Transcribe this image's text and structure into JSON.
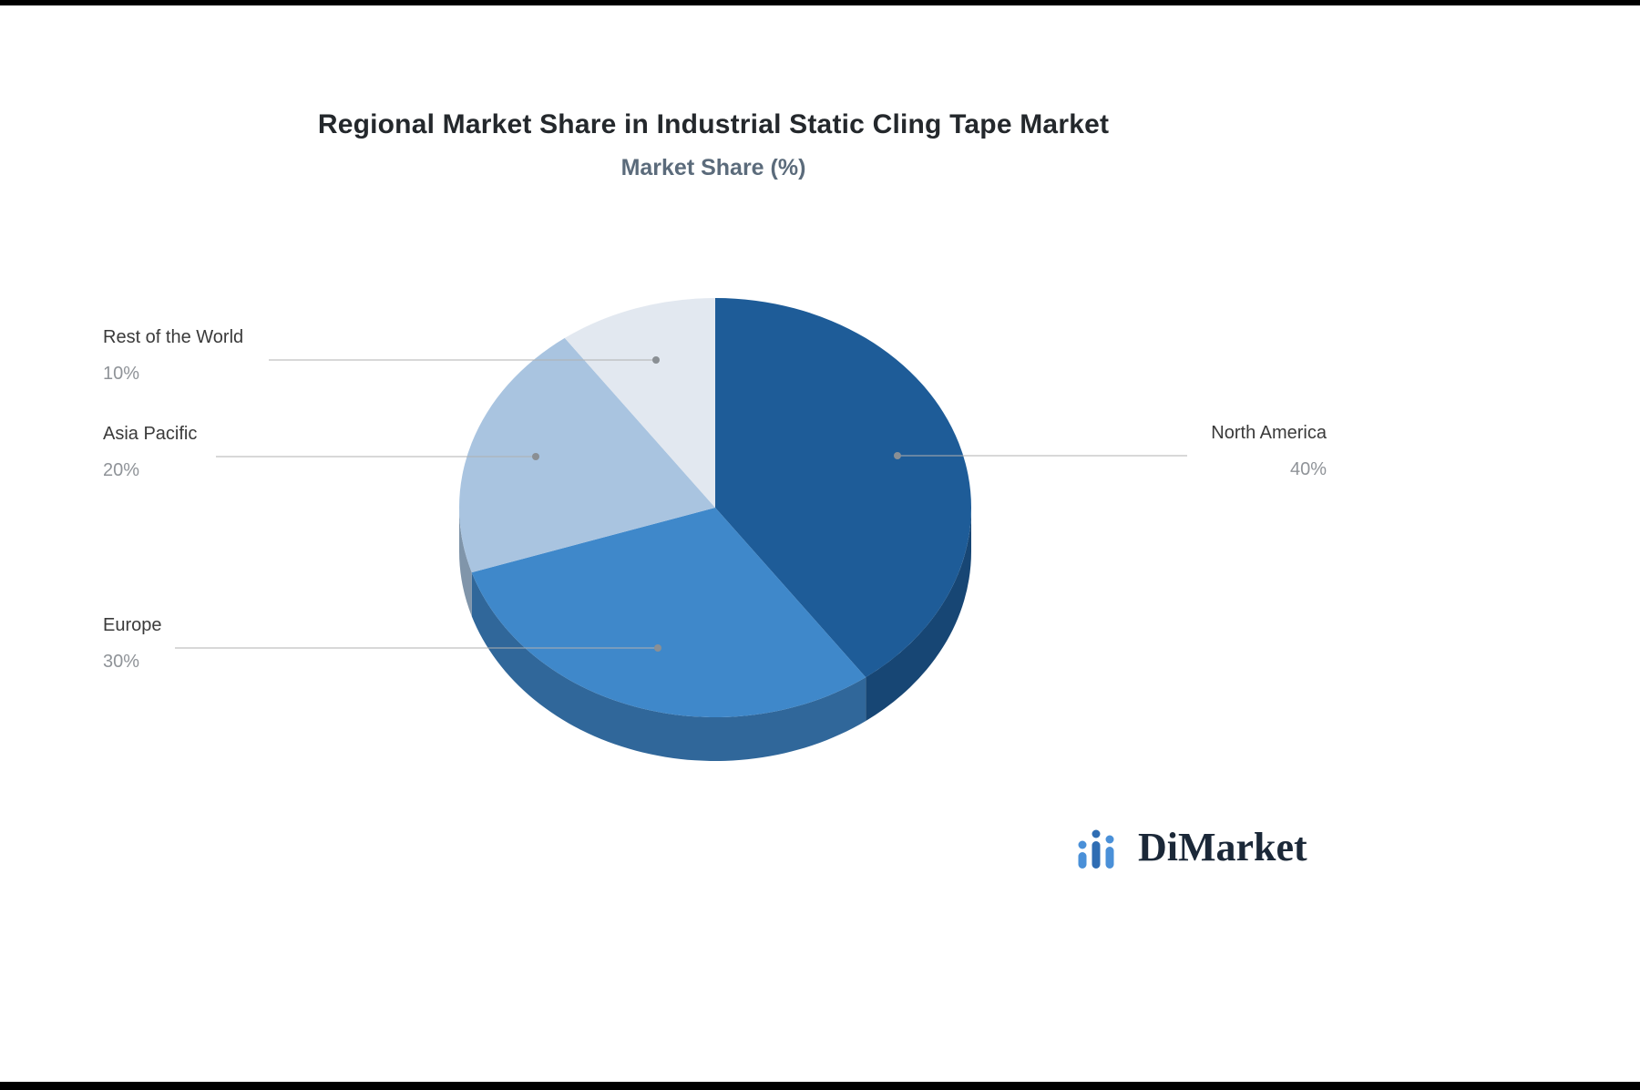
{
  "header": {
    "title": "Regional Market Share in Industrial Static Cling Tape Market",
    "subtitle": "Market Share (%)"
  },
  "chart_data": {
    "type": "pie",
    "style": "3d-pie",
    "title": "Regional Market Share in Industrial Static Cling Tape Market",
    "subtitle": "Market Share (%)",
    "unit": "percent",
    "legend_position": "callout-labels",
    "slices": [
      {
        "label": "North America",
        "value": 40,
        "display": "40%",
        "color": "#1e5c98"
      },
      {
        "label": "Europe",
        "value": 30,
        "display": "30%",
        "color": "#3f88ca"
      },
      {
        "label": "Asia Pacific",
        "value": 20,
        "display": "20%",
        "color": "#a9c4e0"
      },
      {
        "label": "Rest of the World",
        "value": 10,
        "display": "10%",
        "color": "#e2e8f0"
      }
    ]
  },
  "branding": {
    "name": "DiMarket",
    "icon": "bar-chart-logo-icon"
  }
}
